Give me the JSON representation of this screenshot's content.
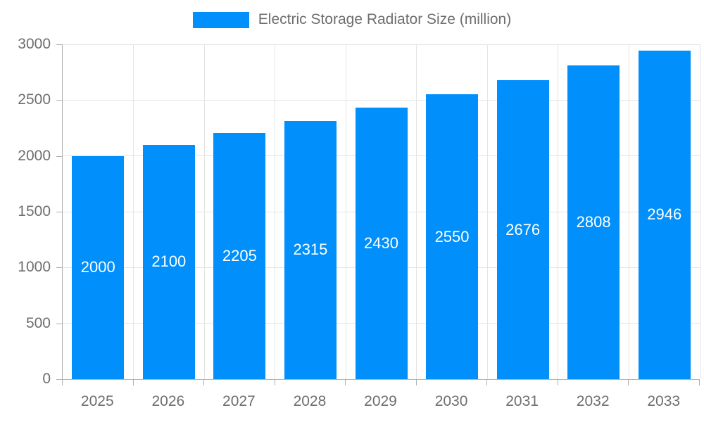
{
  "legend": {
    "label": "Electric Storage Radiator Size (million)",
    "swatch_color": "#008FFB"
  },
  "chart_data": {
    "type": "bar",
    "title": "Electric Storage Radiator Size (million)",
    "categories": [
      "2025",
      "2026",
      "2027",
      "2028",
      "2029",
      "2030",
      "2031",
      "2032",
      "2033"
    ],
    "values": [
      2000,
      2100,
      2205,
      2315,
      2430,
      2550,
      2676,
      2808,
      2946
    ],
    "bar_labels": [
      "2000",
      "2100",
      "2205",
      "2315",
      "2430",
      "2550",
      "2676",
      "2808",
      "2946"
    ],
    "y_ticks": [
      0,
      500,
      1000,
      1500,
      2000,
      2500,
      3000
    ],
    "y_tick_labels": [
      "0",
      "500",
      "1000",
      "1500",
      "2000",
      "2500",
      "3000"
    ],
    "ylim": [
      0,
      3000
    ],
    "xlabel": "",
    "ylabel": "",
    "grid": true,
    "legend_position": "top",
    "bar_color": "#008FFB",
    "bar_value_label_color": "#ffffff",
    "axis_text_color": "#6e6e6e",
    "grid_color": "#e4e4e4"
  }
}
